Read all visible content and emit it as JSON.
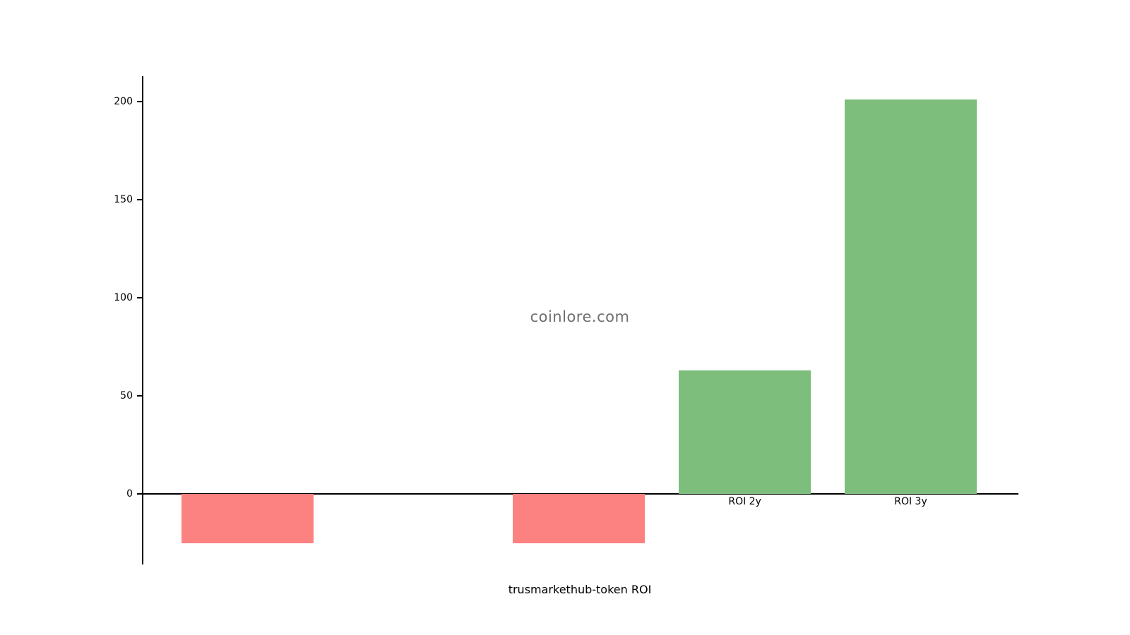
{
  "chart_data": {
    "type": "bar",
    "title": "trusmarkethub-token ROI",
    "watermark": "coinlore.com",
    "categories": [
      "",
      "",
      "",
      "ROI 2y",
      "ROI 3y"
    ],
    "values": [
      -25,
      0,
      -25,
      63,
      201
    ],
    "yticks": [
      "0",
      "50",
      "100",
      "150",
      "200"
    ],
    "ytick_values": [
      0,
      50,
      100,
      150,
      200
    ],
    "ylim": [
      -36,
      213
    ],
    "xlabel": "",
    "ylabel": "",
    "grid": false,
    "legend": false,
    "colors": {
      "negative_bar": "#fc8181",
      "positive_bar": "#7dbe7d",
      "axis": "#000000",
      "tick_label": "#000000",
      "watermark": "#6e6e6e",
      "background": "#ffffff"
    }
  }
}
